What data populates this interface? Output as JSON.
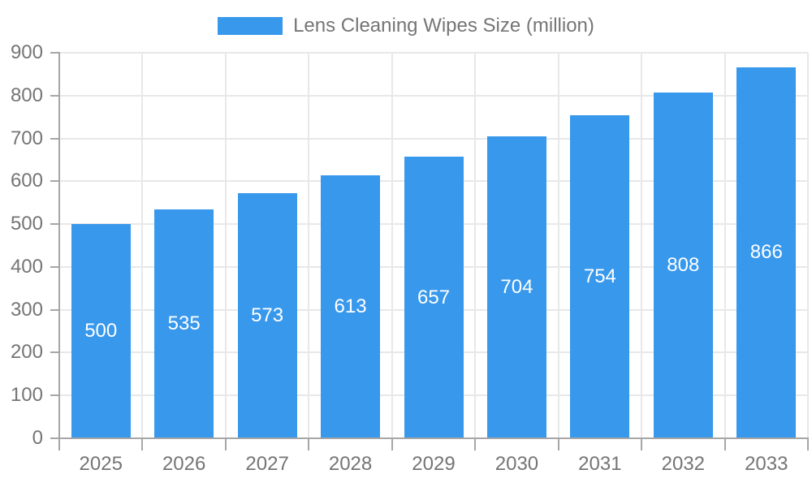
{
  "chart_data": {
    "type": "bar",
    "title": "Lens Cleaning Wipes Size (million)",
    "legend": {
      "label": "Lens Cleaning Wipes Size (million)",
      "position": "top"
    },
    "categories": [
      "2025",
      "2026",
      "2027",
      "2028",
      "2029",
      "2030",
      "2031",
      "2032",
      "2033"
    ],
    "values": [
      500,
      535,
      573,
      613,
      657,
      704,
      754,
      808,
      866
    ],
    "xlabel": "",
    "ylabel": "",
    "ylim": [
      0,
      900
    ],
    "ytick_step": 100,
    "ytick_labels": [
      "0",
      "100",
      "200",
      "300",
      "400",
      "500",
      "600",
      "700",
      "800",
      "900"
    ],
    "grid": true,
    "value_labels": "centered-white",
    "colors": {
      "bar": "#3898EC",
      "grid": "#E8E8E8",
      "axis": "#A6A6A6",
      "tick_label": "#757575",
      "legend_text": "#757575",
      "value_label": "#FFFFFF",
      "background": "#FFFFFF"
    }
  }
}
